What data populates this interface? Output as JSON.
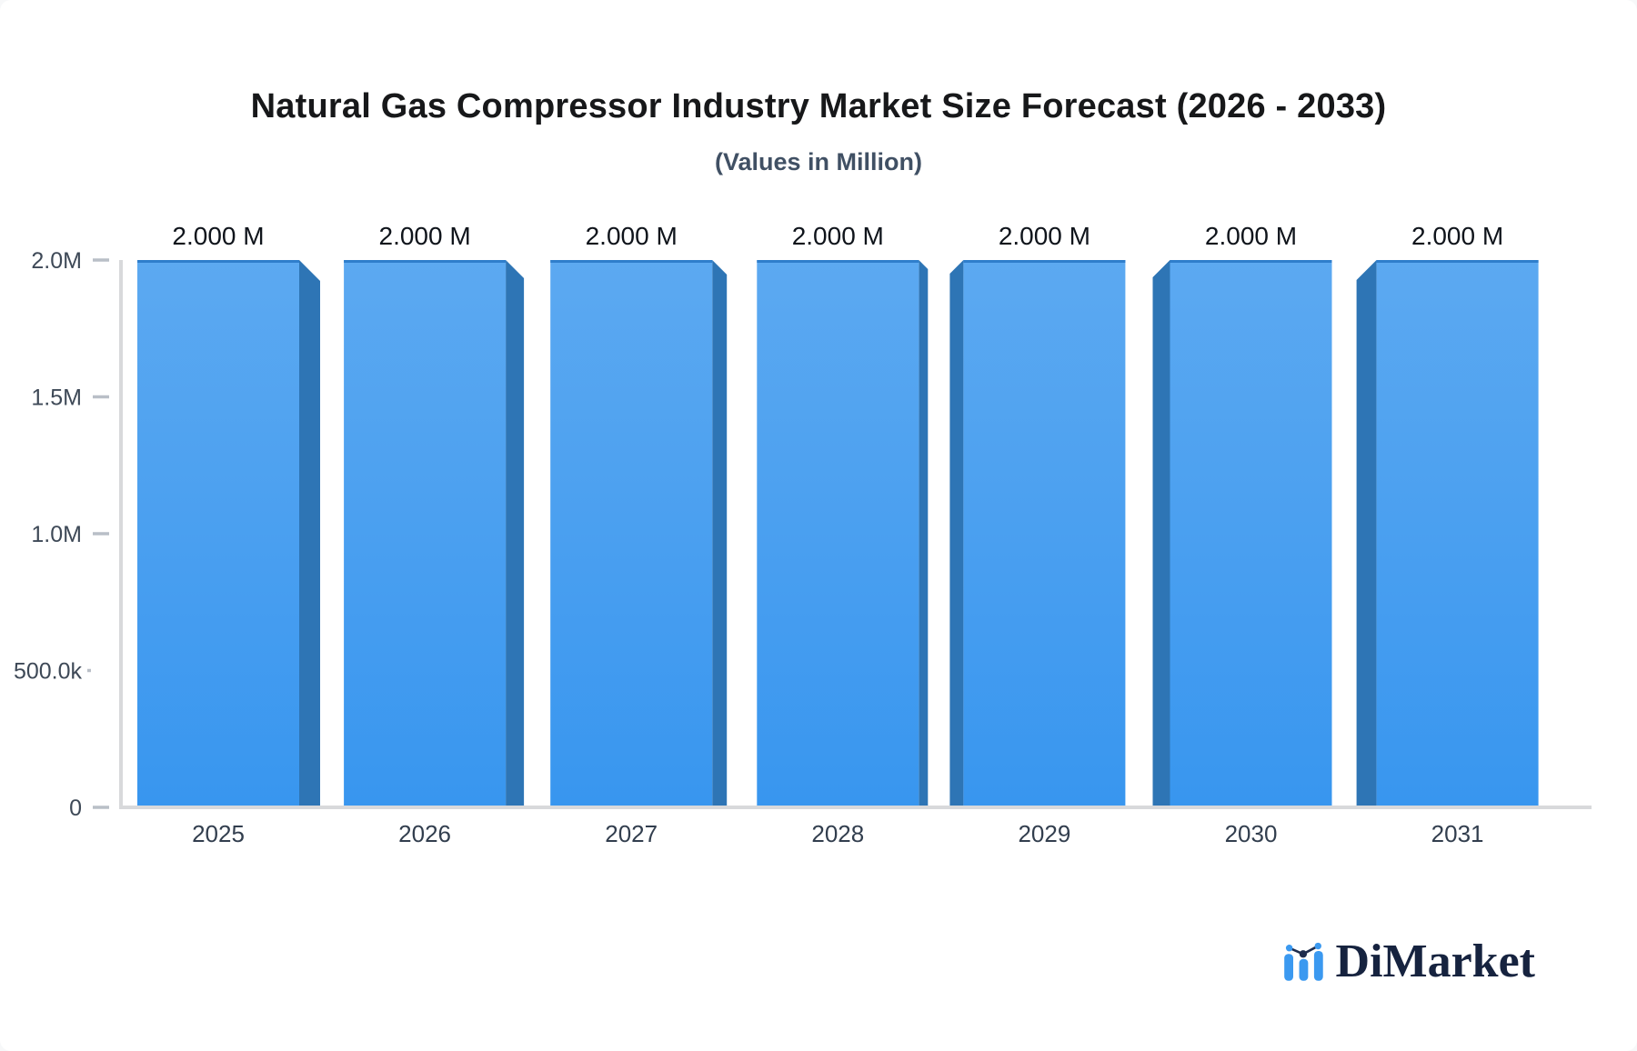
{
  "page": {
    "background": "#f7f8f9",
    "card_background": "#ffffff"
  },
  "chart_data": {
    "type": "bar",
    "title": "Natural Gas Compressor Industry Market Size Forecast (2026 - 2033)",
    "subtitle": "(Values in Million)",
    "categories": [
      "2025",
      "2026",
      "2027",
      "2028",
      "2029",
      "2030",
      "2031"
    ],
    "values": [
      2000000,
      2000000,
      2000000,
      2000000,
      2000000,
      2000000,
      2000000
    ],
    "value_labels": [
      "2.000 M",
      "2.000 M",
      "2.000 M",
      "2.000 M",
      "2.000 M",
      "2.000 M",
      "2.000 M"
    ],
    "xlabel": "",
    "ylabel": "",
    "ylim": [
      0,
      2000000
    ],
    "ytick_values": [
      2000000,
      1500000,
      1000000,
      500000,
      0
    ],
    "ytick_labels": [
      "2.0M",
      "1.5M",
      "1.0M",
      "500.0k",
      "0"
    ],
    "grid": false,
    "legend": null,
    "style_3d": true,
    "colors": {
      "bar_front_top": "#5CA9F1",
      "bar_front_bottom": "#3896EF",
      "bar_side": "#2E75B5",
      "bar_top_edge": "#2F7ECC",
      "axis_line": "#d8d9db",
      "tick_dash": "#b9bfc7"
    }
  },
  "branding": {
    "logo_text": "DiMarket",
    "logo_icon": "bar-chart-trend-icon",
    "logo_text_color": "#16233f",
    "logo_accent": "#3b99f0",
    "logo_dark_accent": "#1e2c4d"
  }
}
